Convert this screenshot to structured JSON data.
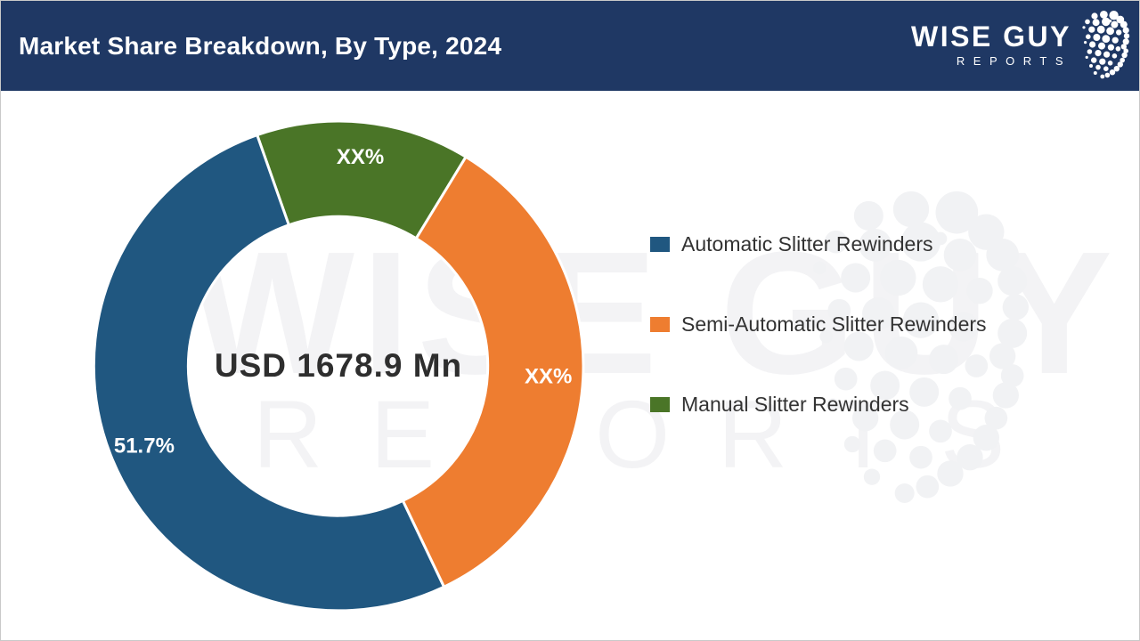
{
  "header": {
    "title": "Market Share Breakdown, By Type, 2024",
    "background": "#1F3864",
    "logo": {
      "line1": "WISE GUY",
      "line2": "REPORTS"
    }
  },
  "watermark": {
    "line1": "WISE GUY",
    "line2": "REPORTS"
  },
  "chart_data": {
    "type": "pie",
    "subtype": "donut",
    "title": "Market Share Breakdown, By Type, 2024",
    "center_label": "USD 1678.9 Mn",
    "legend_position": "right",
    "hole_ratio": 0.61,
    "start_angle_deg": -19.4,
    "draw_order": [
      2,
      1,
      0
    ],
    "segments": [
      {
        "label": "Automatic Slitter Rewinders",
        "display_pct": "51.7%",
        "pct": 51.7,
        "masked": false,
        "color": "#205780"
      },
      {
        "label": "Semi-Automatic Slitter Rewinders",
        "display_pct": "XX%",
        "pct": 34.2,
        "masked": true,
        "color": "#EE7D30"
      },
      {
        "label": "Manual Slitter Rewinders",
        "display_pct": "XX%",
        "pct": 14.1,
        "masked": true,
        "color": "#4A7527"
      }
    ]
  }
}
